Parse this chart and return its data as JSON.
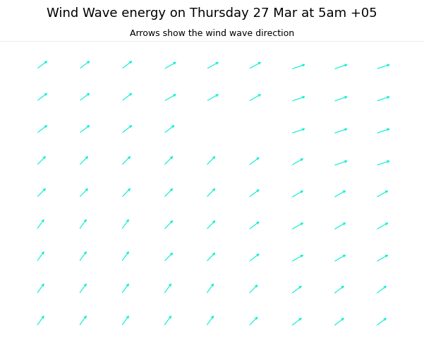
{
  "title": "Wind Wave energy on Thursday 27 Mar at 5am +05",
  "subtitle": "Arrows show the wind wave direction",
  "title_fontsize": 13,
  "subtitle_fontsize": 9,
  "fig_width": 6.01,
  "fig_height": 5.14,
  "dpi": 100,
  "extent": [
    55,
    90,
    -10,
    25
  ],
  "ocean_color": "#000000",
  "land_color_light": "#b0b0b0",
  "land_color_dark": "#888888",
  "bay_bengal_color": "#001a33",
  "arrow_color": "#00eecc",
  "header_bg": "#e8e8e8",
  "header_line_color": "#aaaaaa",
  "right_border_color": "#ffffff",
  "arrow_scale": 0.012,
  "arrows": [
    {
      "lon": 58.0,
      "lat": 22.0,
      "u": 0.7,
      "v": 0.7
    },
    {
      "lon": 58.0,
      "lat": 18.5,
      "u": 0.7,
      "v": 0.7
    },
    {
      "lon": 58.0,
      "lat": 15.0,
      "u": 0.7,
      "v": 0.7
    },
    {
      "lon": 58.0,
      "lat": 11.5,
      "u": 0.6,
      "v": 0.8
    },
    {
      "lon": 58.0,
      "lat": 8.0,
      "u": 0.6,
      "v": 0.8
    },
    {
      "lon": 58.0,
      "lat": 4.5,
      "u": 0.5,
      "v": 0.9
    },
    {
      "lon": 58.0,
      "lat": 1.0,
      "u": 0.5,
      "v": 0.9
    },
    {
      "lon": 58.0,
      "lat": -2.5,
      "u": 0.5,
      "v": 0.9
    },
    {
      "lon": 58.0,
      "lat": -6.0,
      "u": 0.5,
      "v": 0.9
    },
    {
      "lon": 61.5,
      "lat": 22.0,
      "u": 0.7,
      "v": 0.7
    },
    {
      "lon": 61.5,
      "lat": 18.5,
      "u": 0.7,
      "v": 0.7
    },
    {
      "lon": 61.5,
      "lat": 15.0,
      "u": 0.7,
      "v": 0.7
    },
    {
      "lon": 61.5,
      "lat": 11.5,
      "u": 0.6,
      "v": 0.8
    },
    {
      "lon": 61.5,
      "lat": 8.0,
      "u": 0.6,
      "v": 0.8
    },
    {
      "lon": 61.5,
      "lat": 4.5,
      "u": 0.5,
      "v": 0.9
    },
    {
      "lon": 61.5,
      "lat": 1.0,
      "u": 0.5,
      "v": 0.9
    },
    {
      "lon": 61.5,
      "lat": -2.5,
      "u": 0.5,
      "v": 0.9
    },
    {
      "lon": 61.5,
      "lat": -6.0,
      "u": 0.5,
      "v": 0.9
    },
    {
      "lon": 65.0,
      "lat": 22.0,
      "u": 0.7,
      "v": 0.7
    },
    {
      "lon": 65.0,
      "lat": 18.5,
      "u": 0.7,
      "v": 0.7
    },
    {
      "lon": 65.0,
      "lat": 15.0,
      "u": 0.7,
      "v": 0.7
    },
    {
      "lon": 65.0,
      "lat": 11.5,
      "u": 0.6,
      "v": 0.8
    },
    {
      "lon": 65.0,
      "lat": 8.0,
      "u": 0.6,
      "v": 0.8
    },
    {
      "lon": 65.0,
      "lat": 4.5,
      "u": 0.5,
      "v": 0.9
    },
    {
      "lon": 65.0,
      "lat": 1.0,
      "u": 0.5,
      "v": 0.9
    },
    {
      "lon": 65.0,
      "lat": -2.5,
      "u": 0.5,
      "v": 0.9
    },
    {
      "lon": 65.0,
      "lat": -6.0,
      "u": 0.5,
      "v": 0.9
    },
    {
      "lon": 68.5,
      "lat": 22.0,
      "u": 0.8,
      "v": 0.6
    },
    {
      "lon": 68.5,
      "lat": 18.5,
      "u": 0.8,
      "v": 0.6
    },
    {
      "lon": 68.5,
      "lat": 15.0,
      "u": 0.7,
      "v": 0.7
    },
    {
      "lon": 68.5,
      "lat": 11.5,
      "u": 0.6,
      "v": 0.8
    },
    {
      "lon": 68.5,
      "lat": 8.0,
      "u": 0.6,
      "v": 0.8
    },
    {
      "lon": 68.5,
      "lat": 4.5,
      "u": 0.6,
      "v": 0.8
    },
    {
      "lon": 68.5,
      "lat": 1.0,
      "u": 0.6,
      "v": 0.8
    },
    {
      "lon": 68.5,
      "lat": -2.5,
      "u": 0.5,
      "v": 0.9
    },
    {
      "lon": 68.5,
      "lat": -6.0,
      "u": 0.5,
      "v": 0.9
    },
    {
      "lon": 72.0,
      "lat": 22.0,
      "u": 0.8,
      "v": 0.6
    },
    {
      "lon": 72.0,
      "lat": 18.5,
      "u": 0.8,
      "v": 0.6
    },
    {
      "lon": 72.0,
      "lat": 11.5,
      "u": 0.6,
      "v": 0.8
    },
    {
      "lon": 72.0,
      "lat": 8.0,
      "u": 0.6,
      "v": 0.8
    },
    {
      "lon": 72.0,
      "lat": 4.5,
      "u": 0.6,
      "v": 0.8
    },
    {
      "lon": 72.0,
      "lat": 1.0,
      "u": 0.6,
      "v": 0.8
    },
    {
      "lon": 72.0,
      "lat": -2.5,
      "u": 0.5,
      "v": 0.9
    },
    {
      "lon": 72.0,
      "lat": -6.0,
      "u": 0.5,
      "v": 0.9
    },
    {
      "lon": 75.5,
      "lat": 22.0,
      "u": 0.8,
      "v": 0.6
    },
    {
      "lon": 75.5,
      "lat": 18.5,
      "u": 0.8,
      "v": 0.6
    },
    {
      "lon": 75.5,
      "lat": 11.5,
      "u": 0.7,
      "v": 0.7
    },
    {
      "lon": 75.5,
      "lat": 8.0,
      "u": 0.7,
      "v": 0.7
    },
    {
      "lon": 75.5,
      "lat": 4.5,
      "u": 0.7,
      "v": 0.7
    },
    {
      "lon": 75.5,
      "lat": 1.0,
      "u": 0.7,
      "v": 0.7
    },
    {
      "lon": 75.5,
      "lat": -2.5,
      "u": 0.6,
      "v": 0.8
    },
    {
      "lon": 75.5,
      "lat": -6.0,
      "u": 0.6,
      "v": 0.8
    },
    {
      "lon": 79.0,
      "lat": 22.0,
      "u": 0.9,
      "v": 0.4
    },
    {
      "lon": 79.0,
      "lat": 18.5,
      "u": 0.9,
      "v": 0.4
    },
    {
      "lon": 79.0,
      "lat": 15.0,
      "u": 0.9,
      "v": 0.4
    },
    {
      "lon": 79.0,
      "lat": 11.5,
      "u": 0.8,
      "v": 0.6
    },
    {
      "lon": 79.0,
      "lat": 8.0,
      "u": 0.8,
      "v": 0.6
    },
    {
      "lon": 79.0,
      "lat": 4.5,
      "u": 0.8,
      "v": 0.6
    },
    {
      "lon": 79.0,
      "lat": 1.0,
      "u": 0.8,
      "v": 0.6
    },
    {
      "lon": 79.0,
      "lat": -2.5,
      "u": 0.7,
      "v": 0.7
    },
    {
      "lon": 79.0,
      "lat": -6.0,
      "u": 0.7,
      "v": 0.7
    },
    {
      "lon": 82.5,
      "lat": 22.0,
      "u": 0.9,
      "v": 0.4
    },
    {
      "lon": 82.5,
      "lat": 18.5,
      "u": 0.9,
      "v": 0.4
    },
    {
      "lon": 82.5,
      "lat": 15.0,
      "u": 0.9,
      "v": 0.4
    },
    {
      "lon": 82.5,
      "lat": 11.5,
      "u": 0.9,
      "v": 0.4
    },
    {
      "lon": 82.5,
      "lat": 8.0,
      "u": 0.8,
      "v": 0.6
    },
    {
      "lon": 82.5,
      "lat": 4.5,
      "u": 0.8,
      "v": 0.6
    },
    {
      "lon": 82.5,
      "lat": 1.0,
      "u": 0.8,
      "v": 0.6
    },
    {
      "lon": 82.5,
      "lat": -2.5,
      "u": 0.7,
      "v": 0.7
    },
    {
      "lon": 82.5,
      "lat": -6.0,
      "u": 0.7,
      "v": 0.7
    },
    {
      "lon": 86.0,
      "lat": 22.0,
      "u": 0.9,
      "v": 0.4
    },
    {
      "lon": 86.0,
      "lat": 18.5,
      "u": 0.9,
      "v": 0.4
    },
    {
      "lon": 86.0,
      "lat": 15.0,
      "u": 0.9,
      "v": 0.4
    },
    {
      "lon": 86.0,
      "lat": 11.5,
      "u": 0.9,
      "v": 0.4
    },
    {
      "lon": 86.0,
      "lat": 8.0,
      "u": 0.8,
      "v": 0.6
    },
    {
      "lon": 86.0,
      "lat": 4.5,
      "u": 0.8,
      "v": 0.6
    },
    {
      "lon": 86.0,
      "lat": 1.0,
      "u": 0.8,
      "v": 0.6
    },
    {
      "lon": 86.0,
      "lat": -2.5,
      "u": 0.7,
      "v": 0.7
    },
    {
      "lon": 86.0,
      "lat": -6.0,
      "u": 0.7,
      "v": 0.7
    },
    {
      "lon": 89.5,
      "lat": 22.0,
      "u": 0.9,
      "v": 0.4
    },
    {
      "lon": 89.5,
      "lat": 18.5,
      "u": 0.9,
      "v": 0.4
    },
    {
      "lon": 89.5,
      "lat": 15.0,
      "u": 0.9,
      "v": 0.4
    },
    {
      "lon": 89.5,
      "lat": 11.5,
      "u": 0.9,
      "v": 0.4
    },
    {
      "lon": 89.5,
      "lat": 8.0,
      "u": 0.9,
      "v": 0.4
    },
    {
      "lon": 89.5,
      "lat": 4.5,
      "u": 0.8,
      "v": 0.6
    },
    {
      "lon": 89.5,
      "lat": 1.0,
      "u": 0.8,
      "v": 0.6
    },
    {
      "lon": 89.5,
      "lat": -2.5,
      "u": 0.8,
      "v": 0.6
    },
    {
      "lon": 89.5,
      "lat": -6.0,
      "u": 0.8,
      "v": 0.6
    }
  ]
}
